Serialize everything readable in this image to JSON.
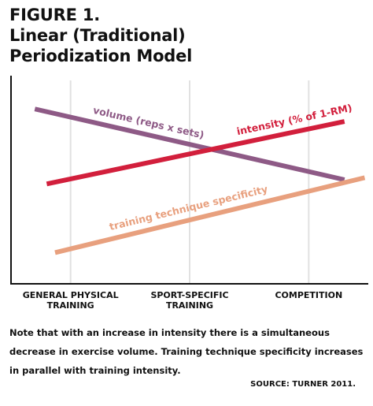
{
  "figure": {
    "label": "FIGURE 1.",
    "title_line1": "Linear (Traditional)",
    "title_line2": "Periodization Model"
  },
  "chart_data": {
    "type": "line",
    "categories": [
      "GENERAL PHYSICAL TRAINING",
      "SPORT-SPECIFIC TRAINING",
      "COMPETITION"
    ],
    "category_lines": [
      [
        "GENERAL PHYSICAL",
        "TRAINING"
      ],
      [
        "SPORT-SPECIFIC",
        "TRAINING"
      ],
      [
        "COMPETITION"
      ]
    ],
    "xlim": [
      0,
      3
    ],
    "category_x": [
      0.5,
      1.5,
      2.5
    ],
    "ylim": [
      0,
      10
    ],
    "y_axis_ticks": "none",
    "grid": "vertical lines at category positions",
    "series": [
      {
        "name": "volume (reps x sets)",
        "color": "#8E5A86",
        "x": [
          0.2,
          2.8
        ],
        "values": [
          8.4,
          5.0
        ]
      },
      {
        "name": "intensity (% of 1-RM)",
        "color": "#D21F3C",
        "x": [
          0.3,
          2.8
        ],
        "values": [
          4.8,
          7.8
        ]
      },
      {
        "name": "training technique specificity",
        "color": "#E8A07E",
        "x": [
          0.37,
          2.97
        ],
        "values": [
          1.5,
          5.1
        ]
      }
    ]
  },
  "caption": "Note that with an increase in intensity there is a simultaneous decrease in exercise volume. Training technique specificity increases in parallel with training intensity.",
  "source": "SOURCE: TURNER 2011."
}
